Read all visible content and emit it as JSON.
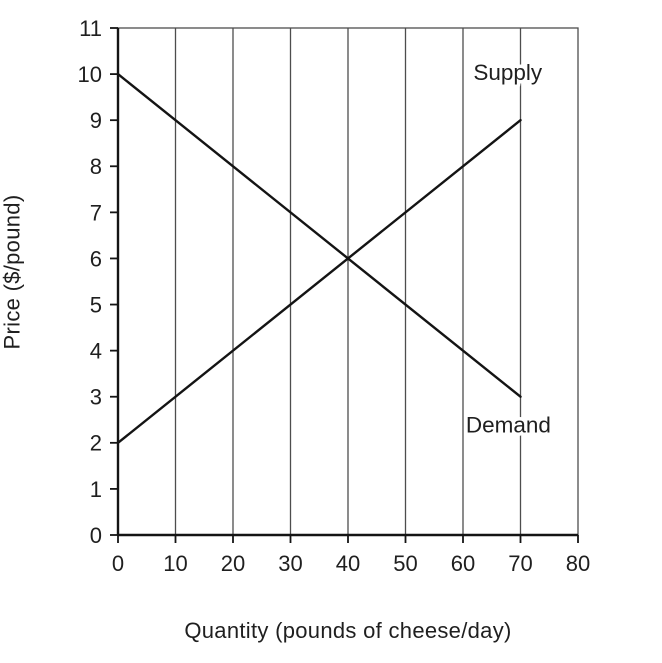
{
  "chart_data": {
    "type": "line",
    "title": "",
    "xlabel": "Quantity (pounds of cheese/day)",
    "ylabel": "Price ($/pound)",
    "xlim": [
      0,
      80
    ],
    "ylim": [
      0,
      11
    ],
    "x_ticks": [
      0,
      10,
      20,
      30,
      40,
      50,
      60,
      70,
      80
    ],
    "y_ticks": [
      0,
      1,
      2,
      3,
      4,
      5,
      6,
      7,
      8,
      9,
      10,
      11
    ],
    "grid": "vertical-only",
    "legend_position": "inline-labels",
    "series": [
      {
        "name": "Supply",
        "points": [
          [
            0,
            2
          ],
          [
            70,
            9
          ]
        ],
        "label_pos": [
          61.8,
          10.05
        ]
      },
      {
        "name": "Demand",
        "points": [
          [
            0,
            10
          ],
          [
            70,
            3
          ]
        ],
        "label_pos": [
          60.5,
          2.4
        ]
      }
    ],
    "intersection": [
      40,
      6
    ],
    "line_color": "#141414",
    "grid_color": "#4d4d4d",
    "axis_color": "#141414",
    "text_color": "#1f1f1f"
  }
}
